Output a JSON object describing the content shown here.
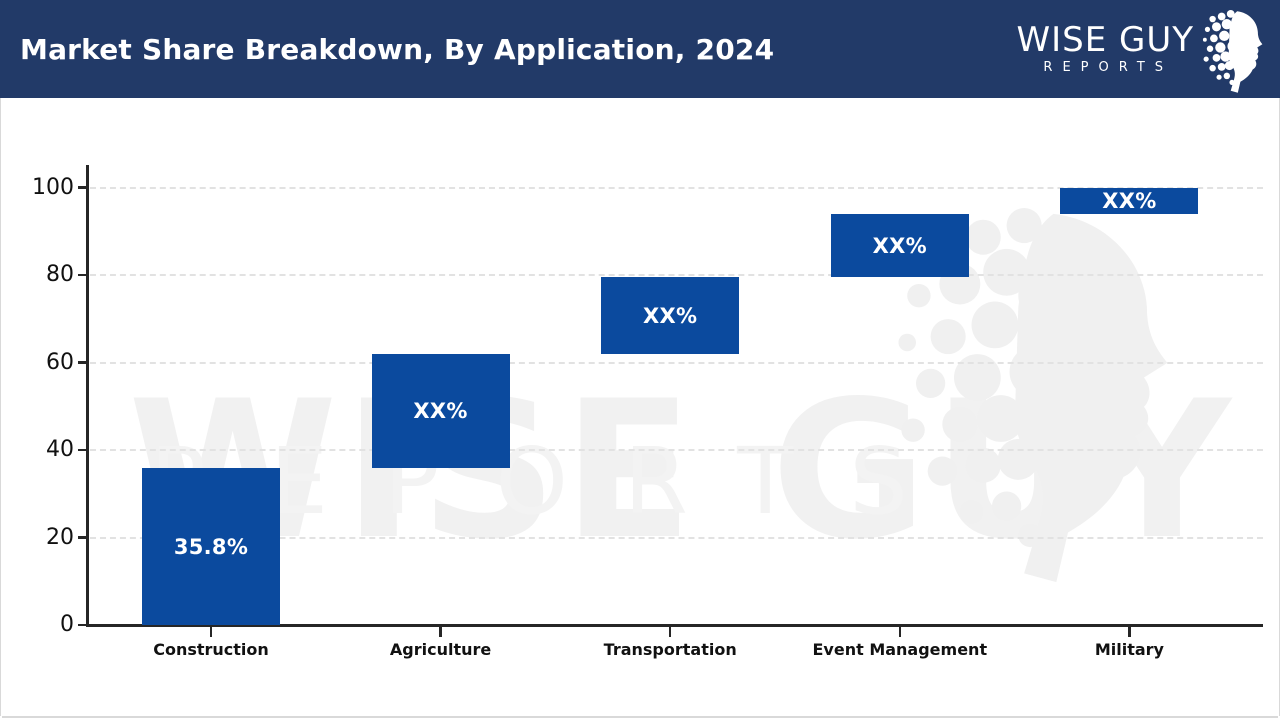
{
  "header": {
    "title": "Market Share Breakdown, By Application, 2024",
    "logo": {
      "line1": "WISE GUY",
      "line2": "REPORTS"
    }
  },
  "watermark": {
    "line1": "WISE GUY",
    "line2": "REPORTS"
  },
  "colors": {
    "header_bg": "#223a68",
    "bar": "#0b4a9e",
    "axis": "#262626",
    "gridline": "#e2e2e2",
    "watermark": "#f1f1f1"
  },
  "chart_data": {
    "type": "bar",
    "subtype": "waterfall",
    "title": "Market Share Breakdown, By Application, 2024",
    "xlabel": "",
    "ylabel": "",
    "ylim": [
      0,
      100
    ],
    "yticks": [
      0,
      20,
      40,
      60,
      80,
      100
    ],
    "grid": true,
    "legend": "none",
    "categories": [
      "Construction",
      "Agriculture",
      "Transportation",
      "Event Management",
      "Military"
    ],
    "segments": [
      {
        "category": "Construction",
        "start": 0,
        "end": 35.8,
        "value": 35.8,
        "label": "35.8%"
      },
      {
        "category": "Agriculture",
        "start": 35.8,
        "end": 61.9,
        "value": 26.1,
        "label": "XX%"
      },
      {
        "category": "Transportation",
        "start": 61.9,
        "end": 79.5,
        "value": 17.6,
        "label": "XX%"
      },
      {
        "category": "Event Management",
        "start": 79.5,
        "end": 93.9,
        "value": 14.4,
        "label": "XX%"
      },
      {
        "category": "Military",
        "start": 93.9,
        "end": 100,
        "value": 6.1,
        "label": "XX%"
      }
    ]
  }
}
